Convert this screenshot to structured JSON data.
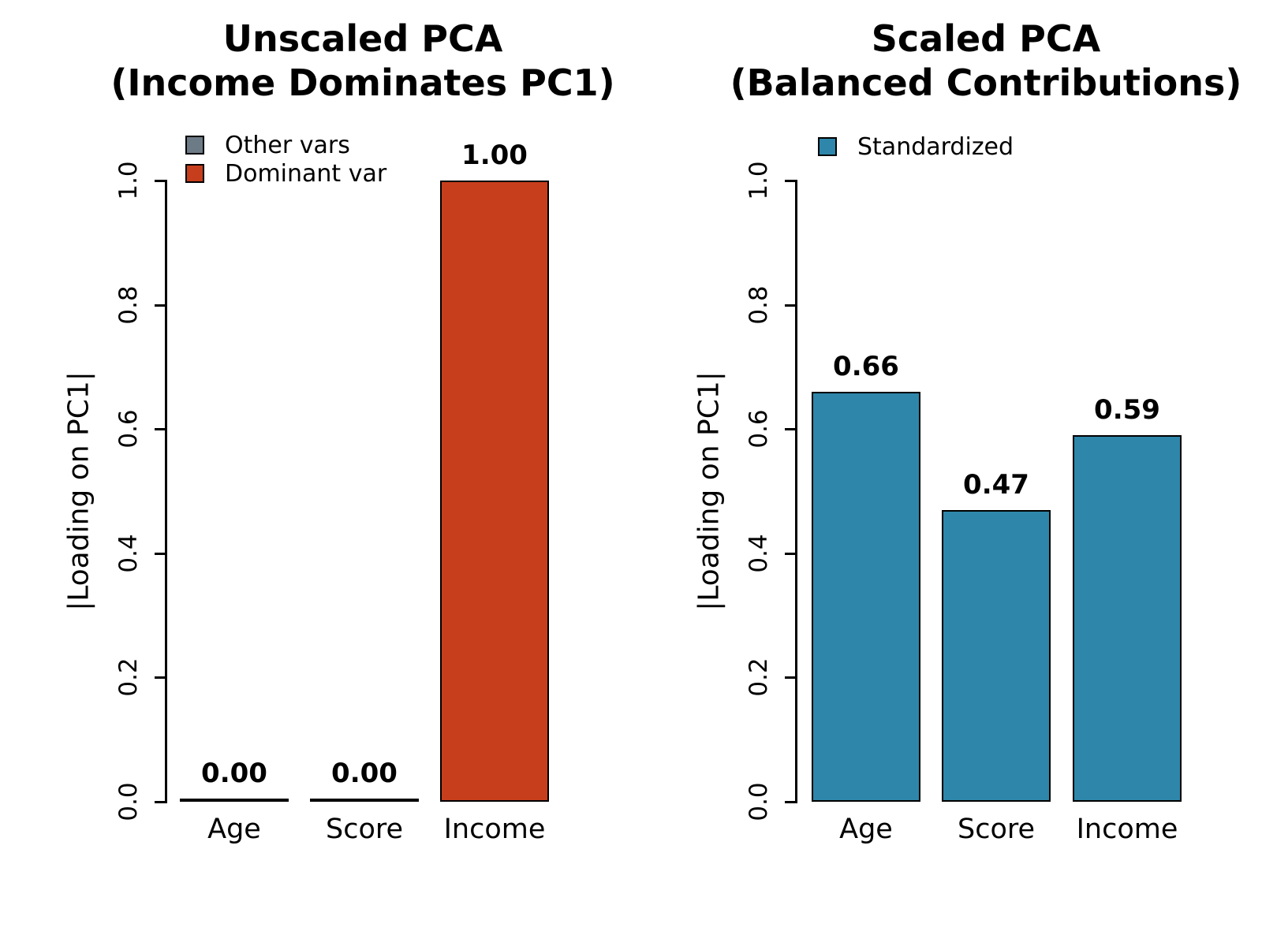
{
  "figure": {
    "background": "#ffffff",
    "text_color": "#000000"
  },
  "chart_data": [
    {
      "type": "bar",
      "title_lines": [
        "Unscaled PCA",
        "(Income Dominates PC1)"
      ],
      "categories": [
        "Age",
        "Score",
        "Income"
      ],
      "values": [
        0.0,
        0.0,
        1.0
      ],
      "value_labels": [
        "0.00",
        "0.00",
        "1.00"
      ],
      "bar_colors": [
        "#6D7B87",
        "#6D7B87",
        "#C73E1D"
      ],
      "xlabel": "",
      "ylabel": "|Loading on PC1|",
      "ylim": [
        0.0,
        1.0
      ],
      "yticks": [
        "0.0",
        "0.2",
        "0.4",
        "0.6",
        "0.8",
        "1.0"
      ],
      "grid": "off",
      "legend": {
        "position": "top-left-inside",
        "items": [
          {
            "label": "Other vars",
            "color": "#6D7B87"
          },
          {
            "label": "Dominant var",
            "color": "#C73E1D"
          }
        ]
      }
    },
    {
      "type": "bar",
      "title_lines": [
        "Scaled PCA",
        "(Balanced Contributions)"
      ],
      "categories": [
        "Age",
        "Score",
        "Income"
      ],
      "values": [
        0.66,
        0.47,
        0.59
      ],
      "value_labels": [
        "0.66",
        "0.47",
        "0.59"
      ],
      "bar_colors": [
        "#2E86AB",
        "#2E86AB",
        "#2E86AB"
      ],
      "xlabel": "",
      "ylabel": "|Loading on PC1|",
      "ylim": [
        0.0,
        1.0
      ],
      "yticks": [
        "0.0",
        "0.2",
        "0.4",
        "0.6",
        "0.8",
        "1.0"
      ],
      "grid": "off",
      "legend": {
        "position": "top-left-inside",
        "items": [
          {
            "label": "Standardized",
            "color": "#2E86AB"
          }
        ]
      }
    }
  ]
}
